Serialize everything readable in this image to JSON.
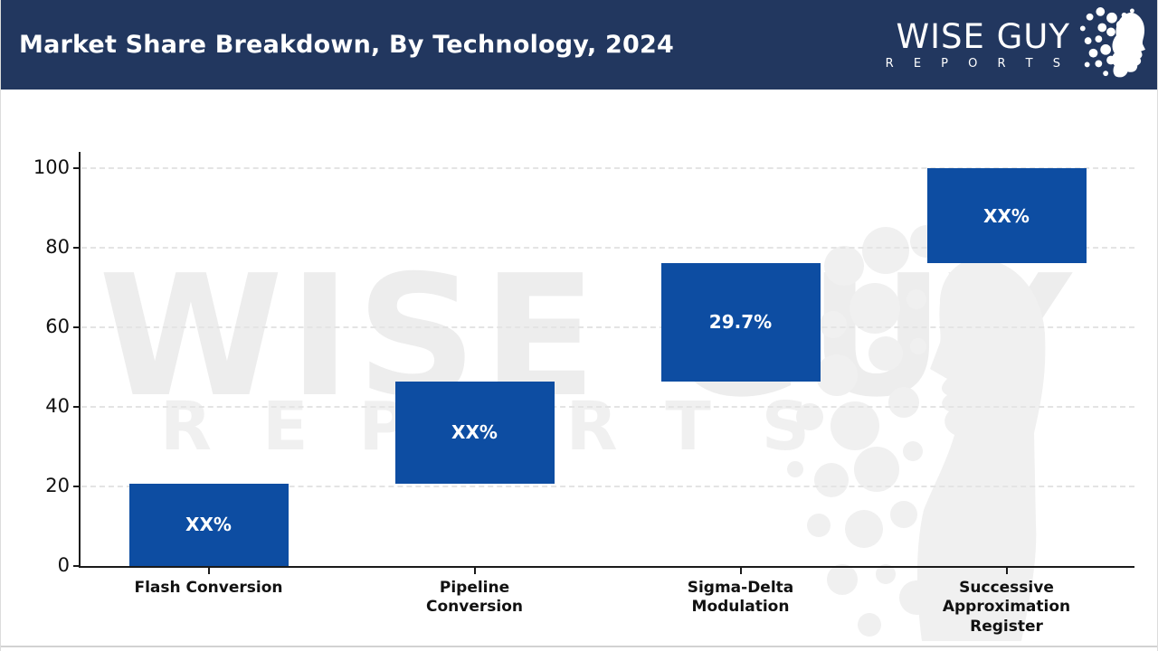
{
  "header": {
    "title": "Market Share Breakdown, By Technology, 2024",
    "bg_color": "#22375f",
    "logo": {
      "line1": "WISE GUY",
      "line2": "R E P O R T S"
    }
  },
  "watermark": {
    "line1": "WISE GUY",
    "line2": "REPORTS"
  },
  "chart_data": {
    "type": "bar",
    "subtype": "waterfall",
    "title": "Market Share Breakdown, By Technology, 2024",
    "categories": [
      "Flash Conversion",
      "Pipeline\nConversion",
      "Sigma-Delta\nModulation",
      "Successive\nApproximation\nRegister"
    ],
    "segments": [
      {
        "category": "Flash Conversion",
        "start": 0,
        "end": 20.7,
        "label": "XX%"
      },
      {
        "category": "Pipeline Conversion",
        "start": 20.7,
        "end": 46.4,
        "label": "XX%"
      },
      {
        "category": "Sigma-Delta Modulation",
        "start": 46.4,
        "end": 76.1,
        "label": "29.7%"
      },
      {
        "category": "Successive Approximation Register",
        "start": 76.1,
        "end": 100,
        "label": "XX%"
      }
    ],
    "yticks": [
      0,
      20,
      40,
      60,
      80,
      100
    ],
    "ylim": [
      0,
      104
    ],
    "grid": "horizontal-dashed",
    "legend": "none",
    "bar_color": "#0d4da2",
    "bar_label_color": "#ffffff",
    "axis_color": "#1a1a1a"
  }
}
